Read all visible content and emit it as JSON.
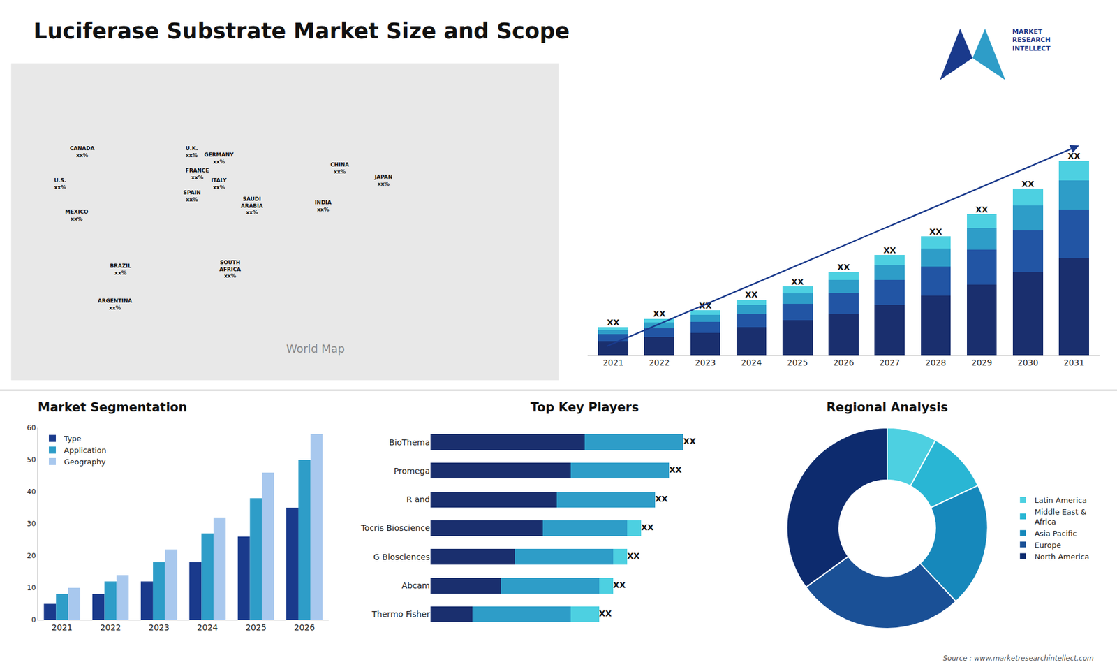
{
  "chart_data": [
    {
      "type": "bar",
      "title": "Luciferase Substrate Market Size and Scope",
      "stacked": true,
      "categories": [
        "2021",
        "2022",
        "2023",
        "2024",
        "2025",
        "2026",
        "2027",
        "2028",
        "2029",
        "2030",
        "2031"
      ],
      "series": [
        {
          "color": "#1a2f6e",
          "values": [
            1.0,
            1.3,
            1.6,
            2.0,
            2.5,
            3.0,
            3.6,
            4.3,
            5.1,
            6.0,
            7.0
          ]
        },
        {
          "color": "#2255a4",
          "values": [
            0.5,
            0.65,
            0.8,
            1.0,
            1.2,
            1.5,
            1.8,
            2.1,
            2.5,
            3.0,
            3.5
          ]
        },
        {
          "color": "#2e9dc8",
          "values": [
            0.3,
            0.4,
            0.5,
            0.6,
            0.75,
            0.9,
            1.1,
            1.3,
            1.55,
            1.8,
            2.1
          ]
        },
        {
          "color": "#4dd0e1",
          "values": [
            0.2,
            0.26,
            0.32,
            0.4,
            0.5,
            0.6,
            0.72,
            0.86,
            1.0,
            1.2,
            1.4
          ],
          "value_labels": [
            "XX",
            "XX",
            "XX",
            "XX",
            "XX",
            "XX",
            "XX",
            "XX",
            "XX",
            "XX",
            "XX"
          ]
        }
      ],
      "ylim": [
        0,
        18.9
      ],
      "grid": false,
      "tick_labels": "x",
      "annotations": [
        "MARKET\nRESEARCH\nINTELLECT",
        "Source : www.marketresearchintellect.com"
      ]
    },
    {
      "type": "map",
      "title": "World Map",
      "annotations": [
        "CANADA\nxx%",
        "U.S.\nxx%",
        "MEXICO\nxx%",
        "BRAZIL\nxx%",
        "ARGENTINA\nxx%",
        "U.K.\nxx%",
        "FRANCE\nxx%",
        "SPAIN\nxx%",
        "GERMANY\nxx%",
        "ITALY\nxx%",
        "SAUDI\nARABIA\nxx%",
        "SOUTH\nAFRICA\nxx%",
        "CHINA\nxx%",
        "INDIA\nxx%",
        "JAPAN\nxx%"
      ]
    },
    {
      "type": "bar",
      "title": "Market Segmentation",
      "categories": [
        "2021",
        "2022",
        "2023",
        "2024",
        "2025",
        "2026"
      ],
      "series": [
        {
          "name": "Type",
          "color": "#1a3a8c",
          "values": [
            5,
            8,
            12,
            18,
            26,
            35
          ]
        },
        {
          "name": "Application",
          "color": "#2e9dc8",
          "values": [
            8,
            12,
            18,
            27,
            38,
            50
          ]
        },
        {
          "name": "Geography",
          "color": "#a8c8ee",
          "values": [
            10,
            14,
            22,
            32,
            46,
            58
          ]
        }
      ],
      "ylim": [
        0,
        60
      ],
      "yticks": [
        0,
        10,
        20,
        30,
        40,
        50,
        60
      ],
      "grid": false,
      "legend": "upper left"
    },
    {
      "type": "bar",
      "title": "Top Key Players",
      "orientation": "horizontal",
      "stacked": true,
      "categories": [
        "BioThema",
        "Promega",
        "R and",
        "Tocris Bioscience",
        "G Biosciences",
        "Abcam",
        "Thermo Fisher"
      ],
      "series": [
        {
          "color": "#1a2f6e",
          "values": [
            5.5,
            5.0,
            4.5,
            4.0,
            3.0,
            2.5,
            1.5
          ]
        },
        {
          "color": "#2e9dc8",
          "values": [
            3.5,
            3.5,
            3.5,
            3.0,
            3.5,
            3.5,
            3.5
          ]
        },
        {
          "color": "#4dd0e1",
          "values": [
            0.0,
            0.0,
            0.0,
            0.5,
            0.5,
            0.5,
            1.0
          ],
          "value_labels": [
            "XX",
            "XX",
            "XX",
            "XX",
            "XX",
            "XX",
            "XX"
          ]
        }
      ],
      "xlim": [
        0,
        10.98
      ],
      "grid": false,
      "tick_labels": "y"
    },
    {
      "type": "pie",
      "title": "Regional Analysis",
      "categories": [
        "Latin America",
        "Middle East &\nAfrica",
        "Asia Pacific",
        "Europe",
        "North America"
      ],
      "values": [
        8,
        10,
        20,
        27,
        35
      ],
      "colors": [
        "#4dd0e1",
        "#29b6d4",
        "#1688bb",
        "#1a5096",
        "#0d2b6e"
      ],
      "legend": "right"
    }
  ]
}
